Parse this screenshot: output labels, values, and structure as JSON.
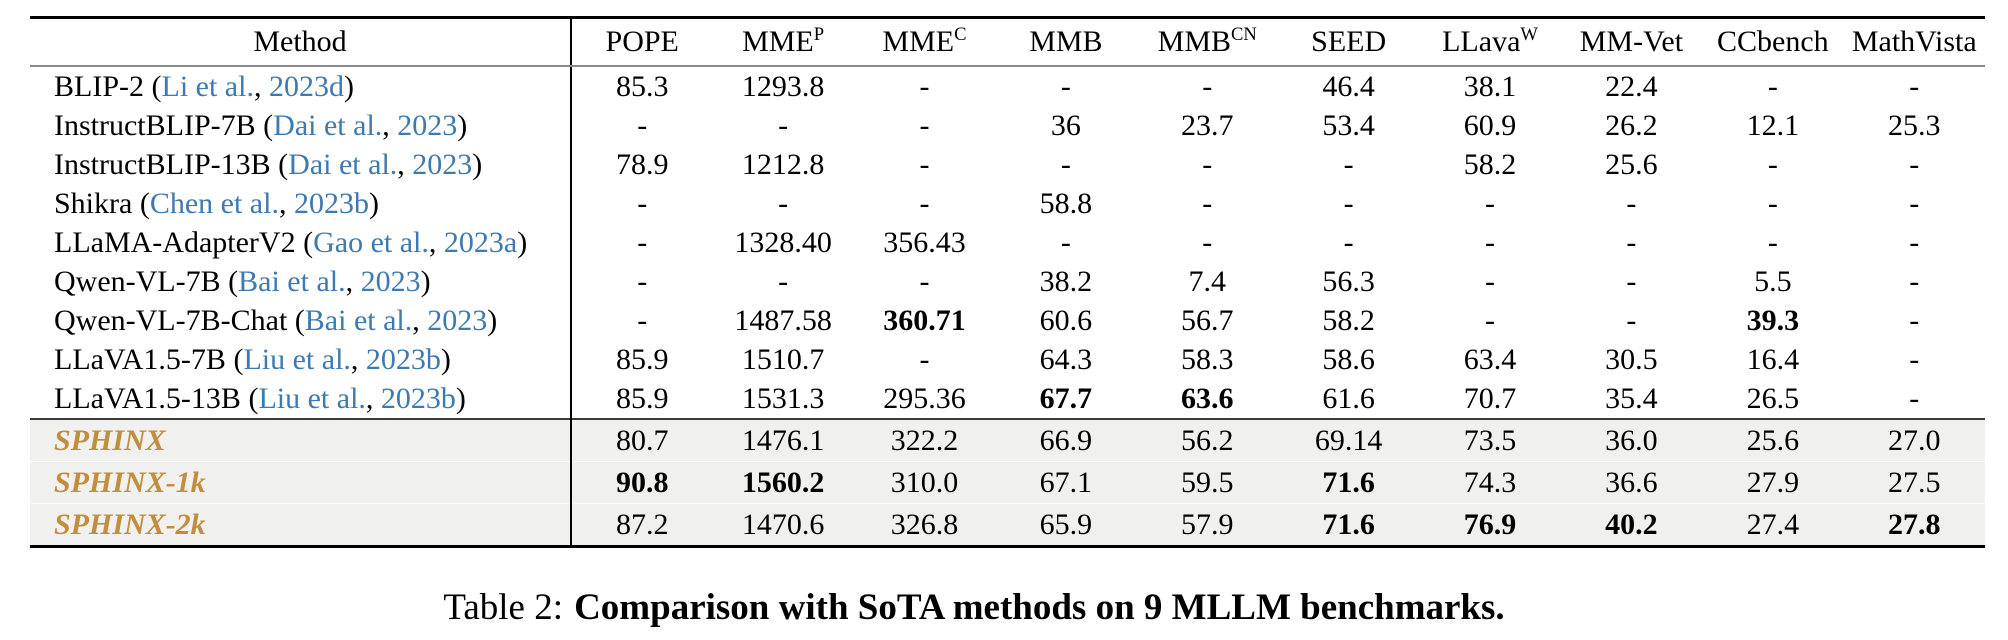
{
  "colors": {
    "citation_blue": "#3D79B2",
    "sphinx_gold": "#C18E3D",
    "highlight_row_bg": "#F0F0EE"
  },
  "caption": {
    "prefix": "Table 2:",
    "title": "Comparison with SoTA methods on 9 MLLM benchmarks."
  },
  "table": {
    "columns": [
      {
        "label": "Method",
        "sup": ""
      },
      {
        "label": "POPE",
        "sup": ""
      },
      {
        "label": "MME",
        "sup": "P"
      },
      {
        "label": "MME",
        "sup": "C"
      },
      {
        "label": "MMB",
        "sup": ""
      },
      {
        "label": "MMB",
        "sup": "CN"
      },
      {
        "label": "SEED",
        "sup": ""
      },
      {
        "label": "LLava",
        "sup": "W"
      },
      {
        "label": "MM-Vet",
        "sup": ""
      },
      {
        "label": "CCbench",
        "sup": ""
      },
      {
        "label": "MathVista",
        "sup": ""
      }
    ],
    "rows": [
      {
        "method": "BLIP-2",
        "citation_authors": "Li et al.",
        "citation_year": "2023d",
        "highlight": false,
        "values": [
          "85.3",
          "1293.8",
          "-",
          "-",
          "-",
          "46.4",
          "38.1",
          "22.4",
          "-",
          "-"
        ],
        "bold": [
          false,
          false,
          false,
          false,
          false,
          false,
          false,
          false,
          false,
          false
        ]
      },
      {
        "method": "InstructBLIP-7B",
        "citation_authors": "Dai et al.",
        "citation_year": "2023",
        "highlight": false,
        "values": [
          "-",
          "-",
          "-",
          "36",
          "23.7",
          "53.4",
          "60.9",
          "26.2",
          "12.1",
          "25.3"
        ],
        "bold": [
          false,
          false,
          false,
          false,
          false,
          false,
          false,
          false,
          false,
          false
        ]
      },
      {
        "method": "InstructBLIP-13B",
        "citation_authors": "Dai et al.",
        "citation_year": "2023",
        "highlight": false,
        "values": [
          "78.9",
          "1212.8",
          "-",
          "-",
          "-",
          "-",
          "58.2",
          "25.6",
          "-",
          "-"
        ],
        "bold": [
          false,
          false,
          false,
          false,
          false,
          false,
          false,
          false,
          false,
          false
        ]
      },
      {
        "method": "Shikra",
        "citation_authors": "Chen et al.",
        "citation_year": "2023b",
        "highlight": false,
        "values": [
          "-",
          "-",
          "-",
          "58.8",
          "-",
          "-",
          "-",
          "-",
          "-",
          "-"
        ],
        "bold": [
          false,
          false,
          false,
          false,
          false,
          false,
          false,
          false,
          false,
          false
        ]
      },
      {
        "method": "LLaMA-AdapterV2",
        "citation_authors": "Gao et al.",
        "citation_year": "2023a",
        "highlight": false,
        "values": [
          "-",
          "1328.40",
          "356.43",
          "-",
          "-",
          "-",
          "-",
          "-",
          "-",
          "-"
        ],
        "bold": [
          false,
          false,
          false,
          false,
          false,
          false,
          false,
          false,
          false,
          false
        ]
      },
      {
        "method": "Qwen-VL-7B",
        "citation_authors": "Bai et al.",
        "citation_year": "2023",
        "highlight": false,
        "values": [
          "-",
          "-",
          "-",
          "38.2",
          "7.4",
          "56.3",
          "-",
          "-",
          "5.5",
          "-"
        ],
        "bold": [
          false,
          false,
          false,
          false,
          false,
          false,
          false,
          false,
          false,
          false
        ]
      },
      {
        "method": "Qwen-VL-7B-Chat",
        "citation_authors": "Bai et al.",
        "citation_year": "2023",
        "highlight": false,
        "values": [
          "-",
          "1487.58",
          "360.71",
          "60.6",
          "56.7",
          "58.2",
          "-",
          "-",
          "39.3",
          "-"
        ],
        "bold": [
          false,
          false,
          true,
          false,
          false,
          false,
          false,
          false,
          true,
          false
        ]
      },
      {
        "method": "LLaVA1.5-7B",
        "citation_authors": "Liu et al.",
        "citation_year": "2023b",
        "highlight": false,
        "values": [
          "85.9",
          "1510.7",
          "-",
          "64.3",
          "58.3",
          "58.6",
          "63.4",
          "30.5",
          "16.4",
          "-"
        ],
        "bold": [
          false,
          false,
          false,
          false,
          false,
          false,
          false,
          false,
          false,
          false
        ]
      },
      {
        "method": "LLaVA1.5-13B",
        "citation_authors": "Liu et al.",
        "citation_year": "2023b",
        "highlight": false,
        "values": [
          "85.9",
          "1531.3",
          "295.36",
          "67.7",
          "63.6",
          "61.6",
          "70.7",
          "35.4",
          "26.5",
          "-"
        ],
        "bold": [
          false,
          false,
          false,
          true,
          true,
          false,
          false,
          false,
          false,
          false
        ]
      },
      {
        "method": "SPHINX",
        "citation_authors": "",
        "citation_year": "",
        "highlight": true,
        "values": [
          "80.7",
          "1476.1",
          "322.2",
          "66.9",
          "56.2",
          "69.14",
          "73.5",
          "36.0",
          "25.6",
          "27.0"
        ],
        "bold": [
          false,
          false,
          false,
          false,
          false,
          false,
          false,
          false,
          false,
          false
        ]
      },
      {
        "method": "SPHINX-1k",
        "citation_authors": "",
        "citation_year": "",
        "highlight": true,
        "values": [
          "90.8",
          "1560.2",
          "310.0",
          "67.1",
          "59.5",
          "71.6",
          "74.3",
          "36.6",
          "27.9",
          "27.5"
        ],
        "bold": [
          true,
          true,
          false,
          false,
          false,
          true,
          false,
          false,
          false,
          false
        ]
      },
      {
        "method": "SPHINX-2k",
        "citation_authors": "",
        "citation_year": "",
        "highlight": true,
        "values": [
          "87.2",
          "1470.6",
          "326.8",
          "65.9",
          "57.9",
          "71.6",
          "76.9",
          "40.2",
          "27.4",
          "27.8"
        ],
        "bold": [
          false,
          false,
          false,
          false,
          false,
          true,
          true,
          true,
          false,
          true
        ]
      }
    ]
  }
}
